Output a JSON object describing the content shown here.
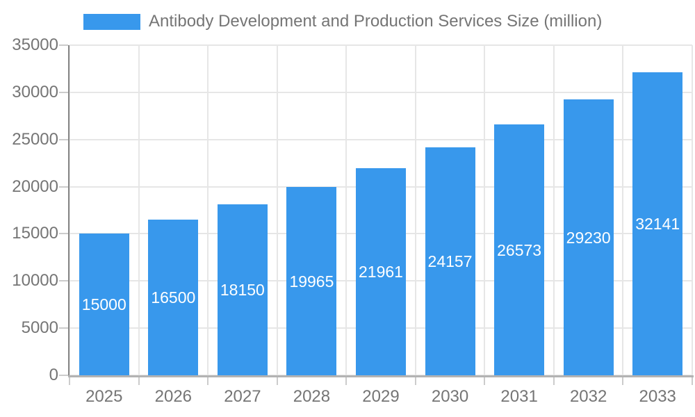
{
  "chart_data": {
    "type": "bar",
    "title": "Antibody Development and Production Services Size (million)",
    "legend_position": "top",
    "categories": [
      "2025",
      "2026",
      "2027",
      "2028",
      "2029",
      "2030",
      "2031",
      "2032",
      "2033"
    ],
    "values": [
      15000,
      16500,
      18150,
      19965,
      21961,
      24157,
      26573,
      29230,
      32141
    ],
    "xlabel": "",
    "ylabel": "",
    "ylim": [
      0,
      35000
    ],
    "yticks": [
      0,
      5000,
      10000,
      15000,
      20000,
      25000,
      30000,
      35000
    ],
    "grid": true,
    "bar_label_style": "inside-center-white",
    "colors": {
      "bar": "#3898EC",
      "axis_text": "#757575",
      "bar_label_text": "#FFFFFF",
      "gridline": "#E6E6E6",
      "x_axis_line": "#B3B3B3",
      "y_axis_line": "#878787",
      "tick": "#CCCCCC",
      "background": "#FFFFFF"
    }
  }
}
